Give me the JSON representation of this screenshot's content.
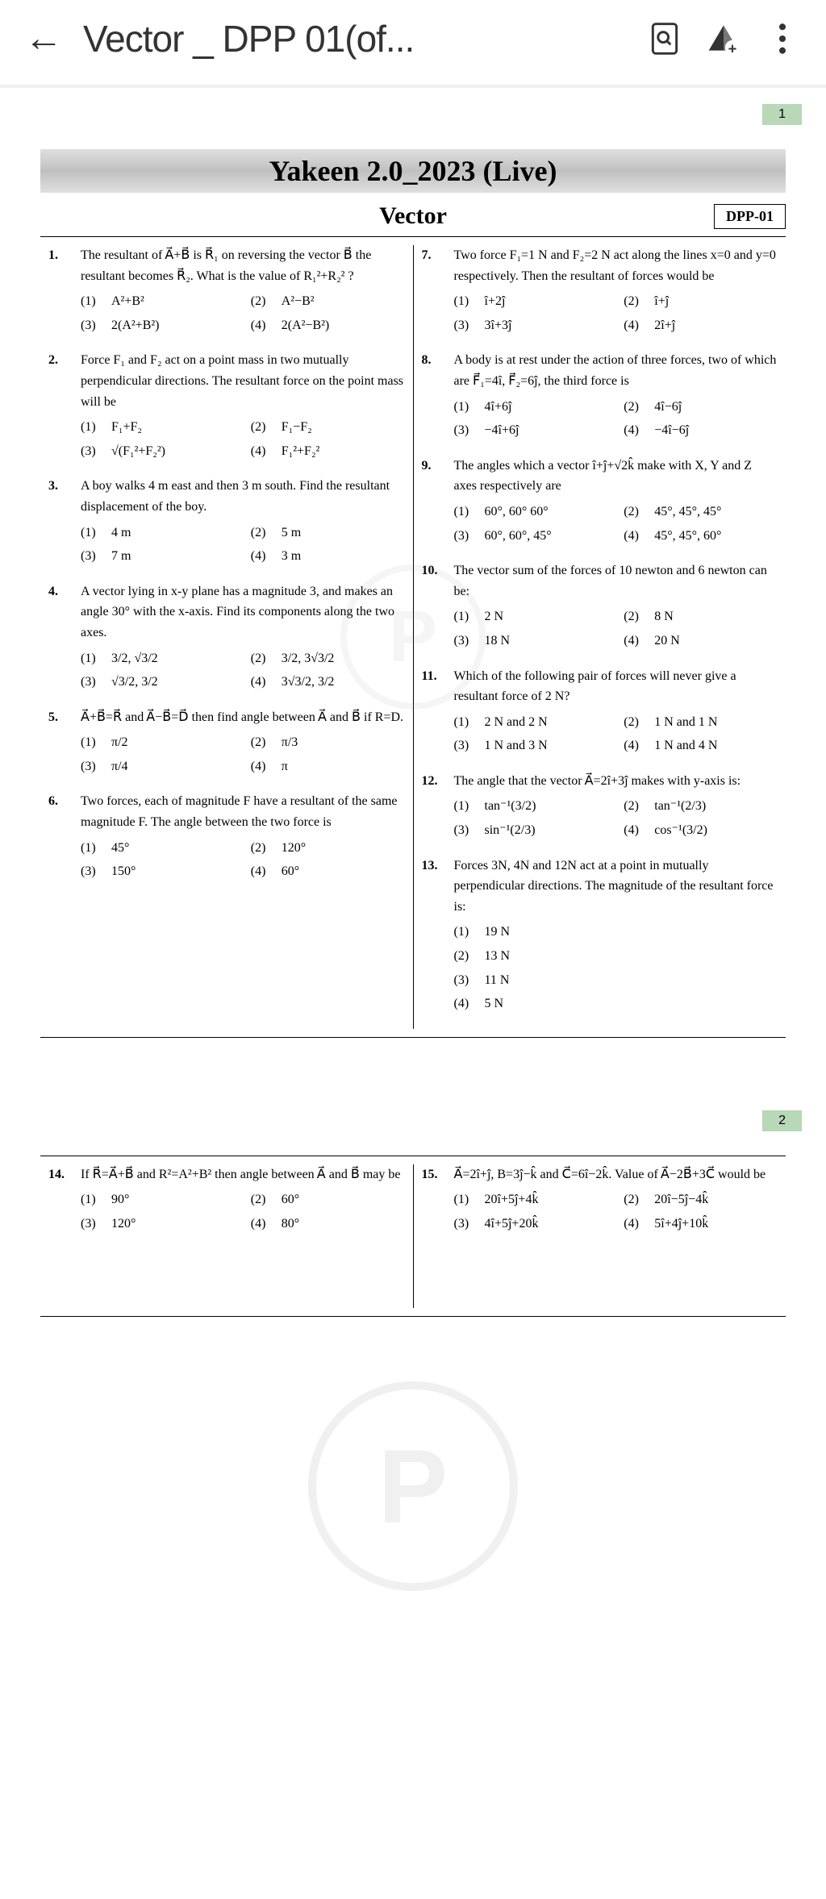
{
  "topbar": {
    "title": "Vector _ DPP 01(of..."
  },
  "page_label_1": "1",
  "page_label_2": "2",
  "header": {
    "title": "Yakeen 2.0_2023 (Live)",
    "subtitle": "Vector",
    "dpp": "DPP-01"
  },
  "questions_left": [
    {
      "n": "1.",
      "text": "The resultant of A⃗+B⃗ is R⃗₁ on reversing the vector B⃗ the resultant becomes R⃗₂. What is the value of R₁²+R₂² ?",
      "opts": [
        "A²+B²",
        "A²−B²",
        "2(A²+B²)",
        "2(A²−B²)"
      ]
    },
    {
      "n": "2.",
      "text": "Force F₁ and F₂ act on a point mass in two mutually perpendicular directions. The resultant force on the point mass will be",
      "opts": [
        "F₁+F₂",
        "F₁−F₂",
        "√(F₁²+F₂²)",
        "F₁²+F₂²"
      ]
    },
    {
      "n": "3.",
      "text": "A boy walks 4 m east and then 3 m south. Find the resultant displacement of the boy.",
      "opts": [
        "4 m",
        "5 m",
        "7 m",
        "3 m"
      ]
    },
    {
      "n": "4.",
      "text": "A vector lying in x-y plane has a magnitude 3, and makes an angle 30° with the x-axis. Find its components along the two axes.",
      "opts": [
        "3/2, √3/2",
        "3/2, 3√3/2",
        "√3/2, 3/2",
        "3√3/2, 3/2"
      ]
    },
    {
      "n": "5.",
      "text": "A⃗+B⃗=R⃗ and A⃗−B⃗=D⃗ then find angle between A⃗ and B⃗ if R=D.",
      "opts": [
        "π/2",
        "π/3",
        "π/4",
        "π"
      ]
    },
    {
      "n": "6.",
      "text": "Two forces, each of magnitude F have a resultant of the same magnitude F. The angle between the two force is",
      "opts": [
        "45°",
        "120°",
        "150°",
        "60°"
      ]
    }
  ],
  "questions_right": [
    {
      "n": "7.",
      "text": "Two force F₁=1 N and F₂=2 N act along the lines x=0 and y=0 respectively. Then the resultant of forces would be",
      "opts": [
        "î+2ĵ",
        "î+ĵ",
        "3î+3ĵ",
        "2î+ĵ"
      ]
    },
    {
      "n": "8.",
      "text": "A body is at rest under the action of three forces, two of which are F⃗₁=4î, F⃗₂=6ĵ, the third force is",
      "opts": [
        "4î+6ĵ",
        "4î−6ĵ",
        "−4î+6ĵ",
        "−4î−6ĵ"
      ]
    },
    {
      "n": "9.",
      "text": "The angles which a vector î+ĵ+√2k̂ make with X, Y and Z axes respectively are",
      "opts": [
        "60°, 60° 60°",
        "45°, 45°, 45°",
        "60°, 60°, 45°",
        "45°, 45°, 60°"
      ]
    },
    {
      "n": "10.",
      "text": "The vector sum of the forces of 10 newton and 6 newton can be:",
      "opts": [
        "2 N",
        "8 N",
        "18 N",
        "20 N"
      ]
    },
    {
      "n": "11.",
      "text": "Which of the following pair of forces will never give a resultant force of 2 N?",
      "opts": [
        "2 N and 2 N",
        "1 N and 1 N",
        "1 N and 3 N",
        "1 N and 4 N"
      ]
    },
    {
      "n": "12.",
      "text": "The angle that the vector A⃗=2î+3ĵ makes with y-axis is:",
      "opts": [
        "tan⁻¹(3/2)",
        "tan⁻¹(2/3)",
        "sin⁻¹(2/3)",
        "cos⁻¹(3/2)"
      ]
    },
    {
      "n": "13.",
      "text": "Forces 3N, 4N and 12N act at a point in mutually perpendicular directions. The magnitude of the resultant force is:",
      "opts": [
        "19 N",
        "13 N",
        "11 N",
        "5 N"
      ],
      "single_col": true
    }
  ],
  "questions2_left": [
    {
      "n": "14.",
      "text": "If R⃗=A⃗+B⃗ and R²=A²+B² then angle between A⃗ and B⃗ may be",
      "opts": [
        "90°",
        "60°",
        "120°",
        "80°"
      ]
    }
  ],
  "questions2_right": [
    {
      "n": "15.",
      "text": "A⃗=2î+ĵ, B=3ĵ−k̂ and C⃗=6î−2k̂. Value of A⃗−2B⃗+3C⃗ would be",
      "opts": [
        "20î+5ĵ+4k̂",
        "20î−5ĵ−4k̂",
        "4î+5ĵ+20k̂",
        "5î+4ĵ+10k̂"
      ]
    }
  ],
  "watermark": "P"
}
